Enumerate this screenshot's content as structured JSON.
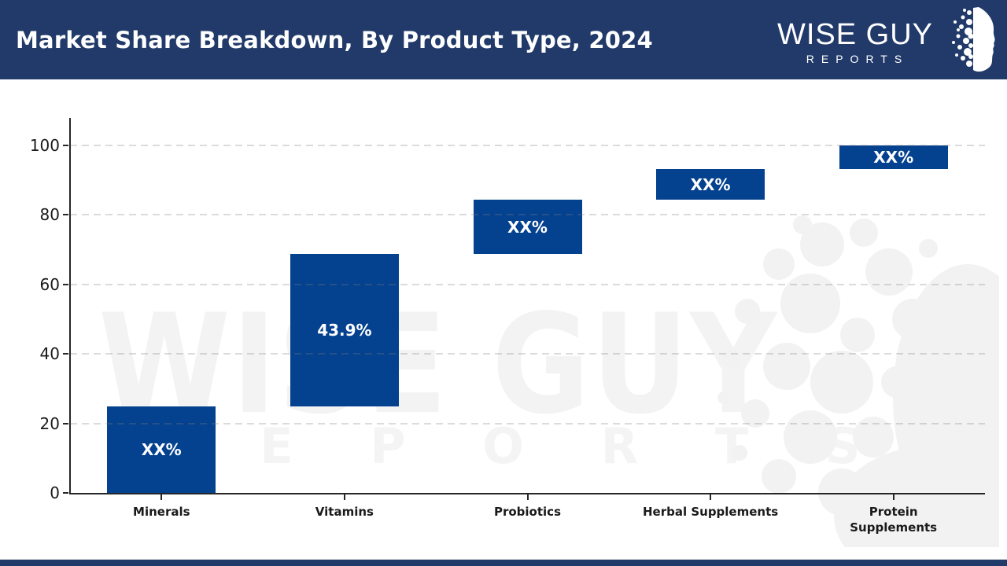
{
  "header": {
    "title": "Market Share Breakdown, By Product Type, 2024",
    "logo_line1": "WISE GUY",
    "logo_line2": "REPORTS"
  },
  "watermark": {
    "line1": "WISE GUY",
    "line2": "REPORTS"
  },
  "colors": {
    "header_bg": "#213a69",
    "bar_blue": "#04418f",
    "axis": "#262626",
    "grid": "#e3e3e3",
    "bar_label": "#ffffff"
  },
  "chart_data": {
    "type": "bar",
    "subtype": "floating-waterfall",
    "title": "Market Share Breakdown, By Product Type, 2024",
    "xlabel": "",
    "ylabel": "",
    "ylim": [
      0,
      100
    ],
    "yticks": [
      0,
      20,
      40,
      60,
      80,
      100
    ],
    "grid": "horizontal-dashed",
    "legend": "none",
    "bar_color": "#04418f",
    "categories": [
      "Minerals",
      "Vitamins",
      "Probiotics",
      "Herbal Supplements",
      "Protein\nSupplements"
    ],
    "segments": [
      {
        "category": "Minerals",
        "start": 0,
        "end": 24.8,
        "label": "XX%"
      },
      {
        "category": "Vitamins",
        "start": 24.8,
        "end": 68.7,
        "label": "43.9%"
      },
      {
        "category": "Probiotics",
        "start": 68.7,
        "end": 84.3,
        "label": "XX%"
      },
      {
        "category": "Herbal Supplements",
        "start": 84.3,
        "end": 93.2,
        "label": "XX%"
      },
      {
        "category": "Protein Supplements",
        "start": 93.2,
        "end": 100,
        "label": "XX%"
      }
    ]
  }
}
